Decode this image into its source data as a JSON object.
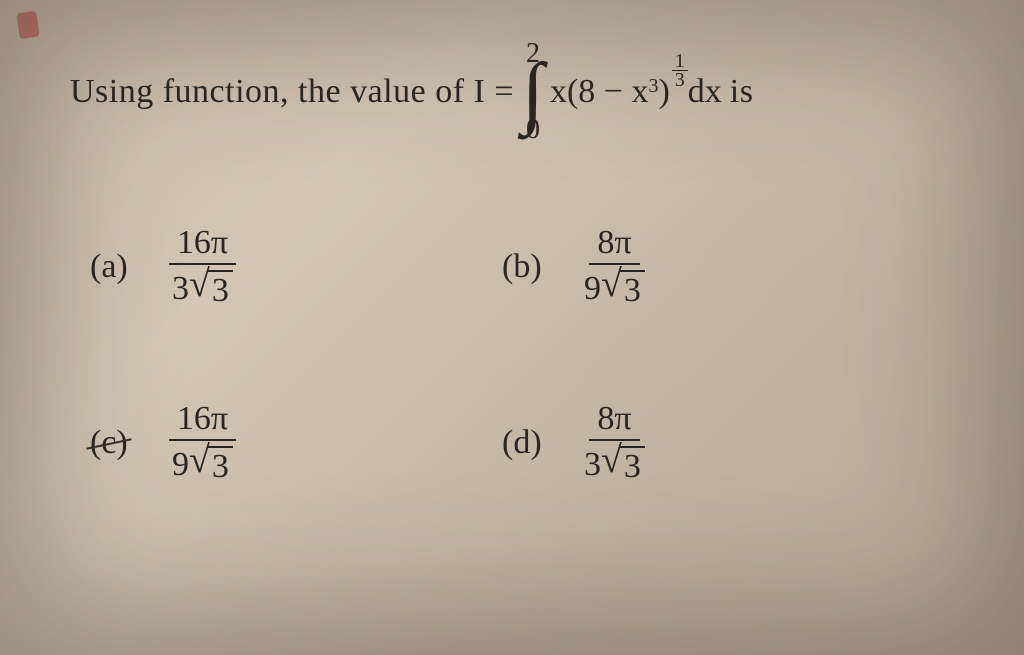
{
  "question": {
    "prefix_with_beta": "Using function, the value of I =",
    "integral": {
      "upper": "2",
      "lower": "0",
      "integrand_before_exp": "x(8 − x",
      "inner_exp": "3",
      "close_paren": ")",
      "outer_exp_num": "1",
      "outer_exp_den": "3",
      "differential": "dx"
    },
    "suffix": " is"
  },
  "options": [
    {
      "label": "(a)",
      "struck": false,
      "numer": "16π",
      "denom_coef": "3",
      "denom_rad": "3"
    },
    {
      "label": "(b)",
      "struck": false,
      "numer": "8π",
      "denom_coef": "9",
      "denom_rad": "3"
    },
    {
      "label": "(c)",
      "struck": true,
      "numer": "16π",
      "denom_coef": "9",
      "denom_rad": "3"
    },
    {
      "label": "(d)",
      "struck": false,
      "numer": "8π",
      "denom_coef": "3",
      "denom_rad": "3"
    }
  ],
  "style": {
    "text_color": "#2a2520",
    "background_gradient": [
      "#c8b8a8",
      "#d4c5b5",
      "#c0b0a0",
      "#b8a898"
    ],
    "font_family": "Georgia, 'Times New Roman', serif",
    "question_fontsize": 34,
    "option_fontsize": 34,
    "integral_symbol_fontsize": 80,
    "bound_fontsize": 28,
    "frac_exp_fontsize": 20,
    "fraction_rule_width": 2,
    "sqrt_overline_width": 2
  }
}
